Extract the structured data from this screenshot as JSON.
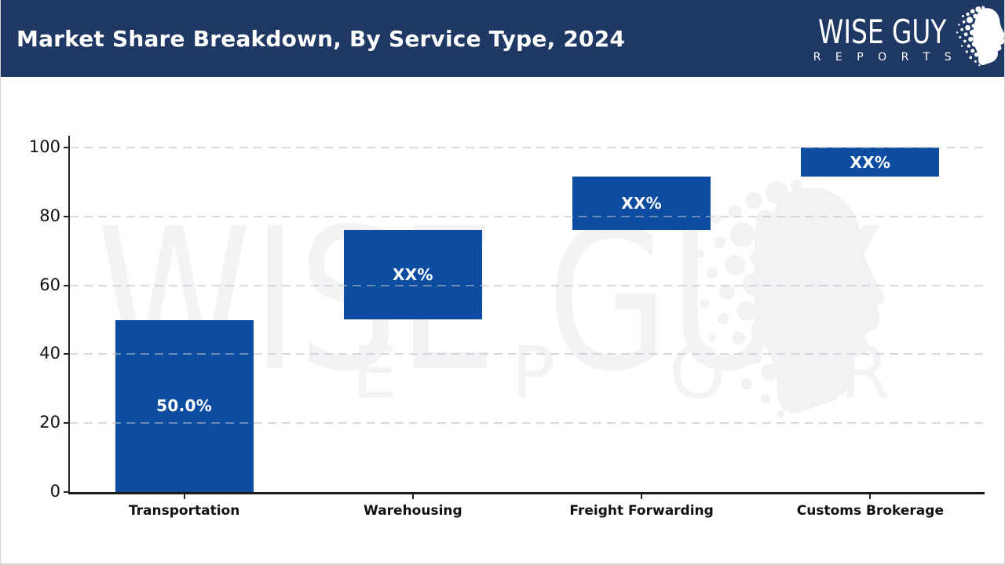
{
  "header": {
    "title": "Market Share Breakdown, By Service Type, 2024",
    "background_color": "#1f3864",
    "logo": {
      "line1": "WISE GUY",
      "line2": "R E P O R T S"
    }
  },
  "watermark": {
    "line1": "WISE GUY",
    "line2": "R E P O R T S"
  },
  "chart_data": {
    "type": "bar",
    "variant": "waterfall",
    "title": "Market Share Breakdown, By Service Type, 2024",
    "categories": [
      "Transportation",
      "Warehousing",
      "Freight Forwarding",
      "Customs Brokerage"
    ],
    "series": [
      {
        "name": "Market share (%)",
        "segments": [
          {
            "category": "Transportation",
            "start": 0,
            "end": 50,
            "label": "50.0%"
          },
          {
            "category": "Warehousing",
            "start": 50,
            "end": 76,
            "label": "XX%"
          },
          {
            "category": "Freight Forwarding",
            "start": 76,
            "end": 91.5,
            "label": "XX%"
          },
          {
            "category": "Customs Brokerage",
            "start": 91.5,
            "end": 100,
            "label": "XX%"
          }
        ]
      }
    ],
    "xlabel": "",
    "ylabel": "",
    "ylim": [
      0,
      100
    ],
    "yticks": [
      0,
      20,
      40,
      60,
      80,
      100
    ],
    "grid": {
      "axis": "y",
      "style": "dashed",
      "color": "#dedede"
    },
    "legend": "none",
    "bar_color": "#0c4da1",
    "bar_label_color": "#ffffff",
    "axis_color": "#262626",
    "background": "#ffffff"
  }
}
